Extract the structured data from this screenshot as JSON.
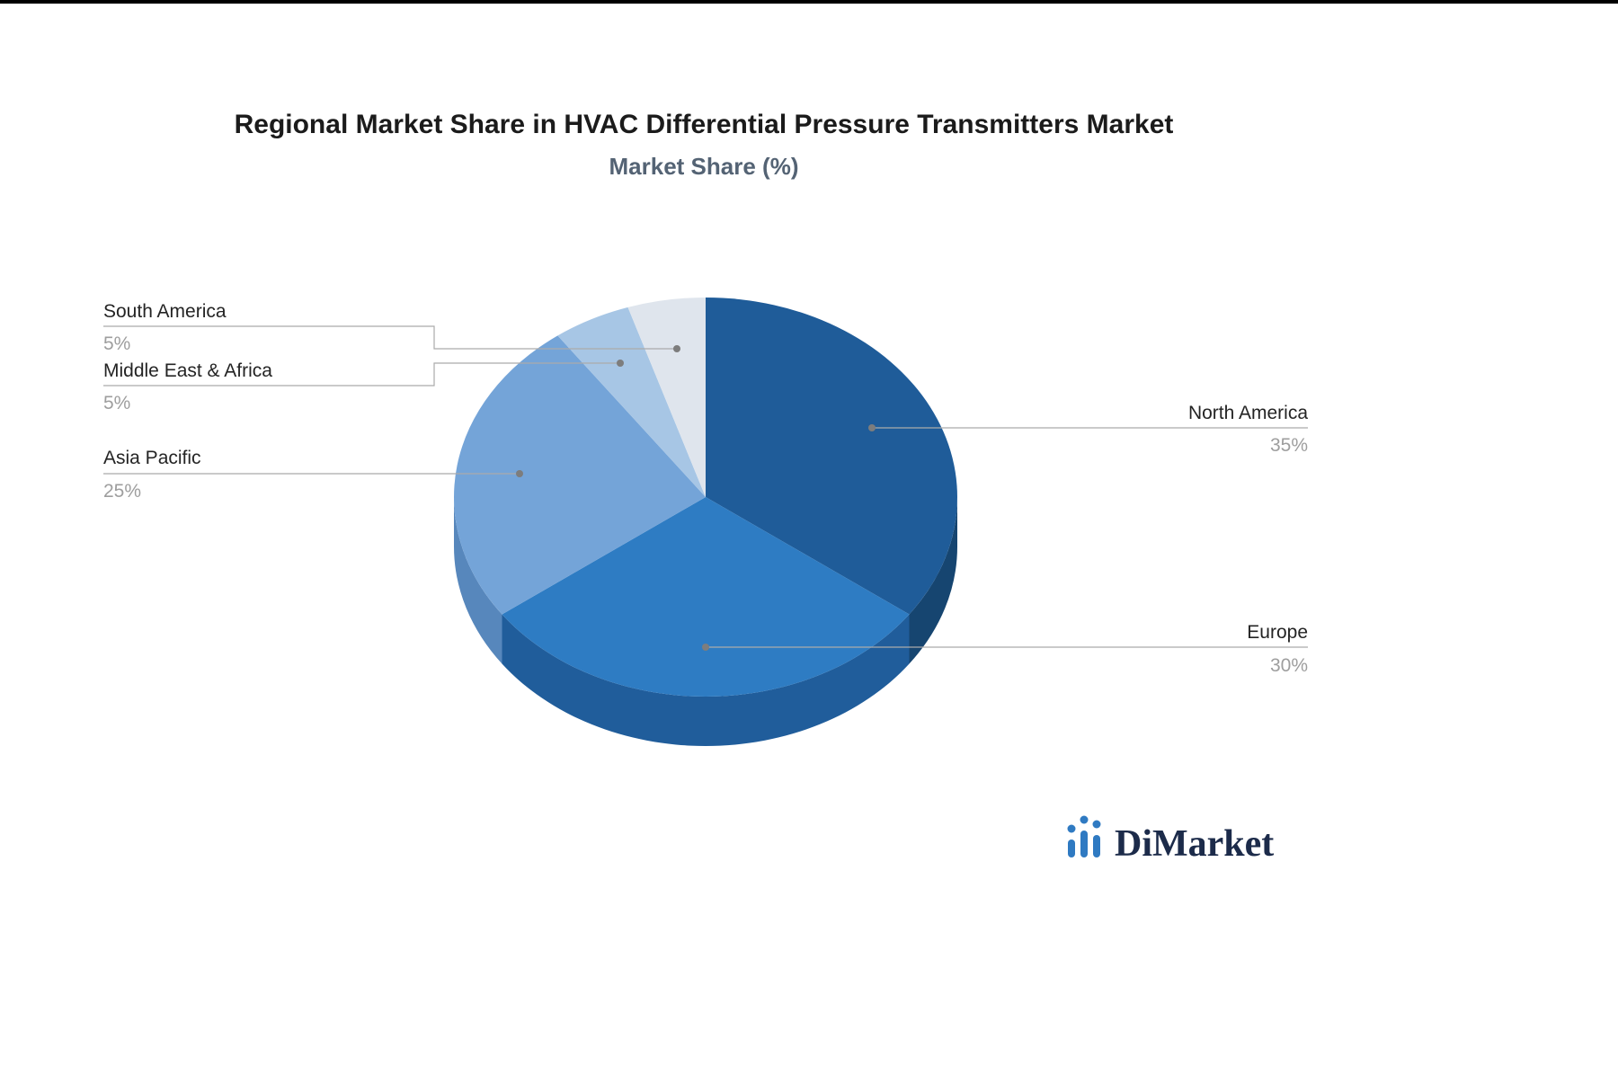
{
  "chart_data": {
    "type": "pie",
    "title": "Regional Market Share in HVAC Differential Pressure Transmitters Market",
    "subtitle": "Market Share (%)",
    "unit": "%",
    "style": "3d-pie",
    "start_angle_deg": 0,
    "direction": "clockwise",
    "legend_position": "none",
    "slices": [
      {
        "label": "North America",
        "value": 35,
        "display": "35%",
        "color": "#1F5C99",
        "side_color": "#164570"
      },
      {
        "label": "Europe",
        "value": 30,
        "display": "30%",
        "color": "#2E7CC3",
        "side_color": "#205D9B"
      },
      {
        "label": "Asia Pacific",
        "value": 25,
        "display": "25%",
        "color": "#74A4D8",
        "side_color": "#5787BC"
      },
      {
        "label": "Middle East & Africa",
        "value": 5,
        "display": "5%",
        "color": "#A7C6E5",
        "side_color": "#8FB2D6"
      },
      {
        "label": "South America",
        "value": 5,
        "display": "5%",
        "color": "#DFE5ED",
        "side_color": "#C5CFDB"
      }
    ]
  },
  "branding": {
    "logo_text": "DiMarket",
    "logo_color": "#2F7AC2"
  }
}
